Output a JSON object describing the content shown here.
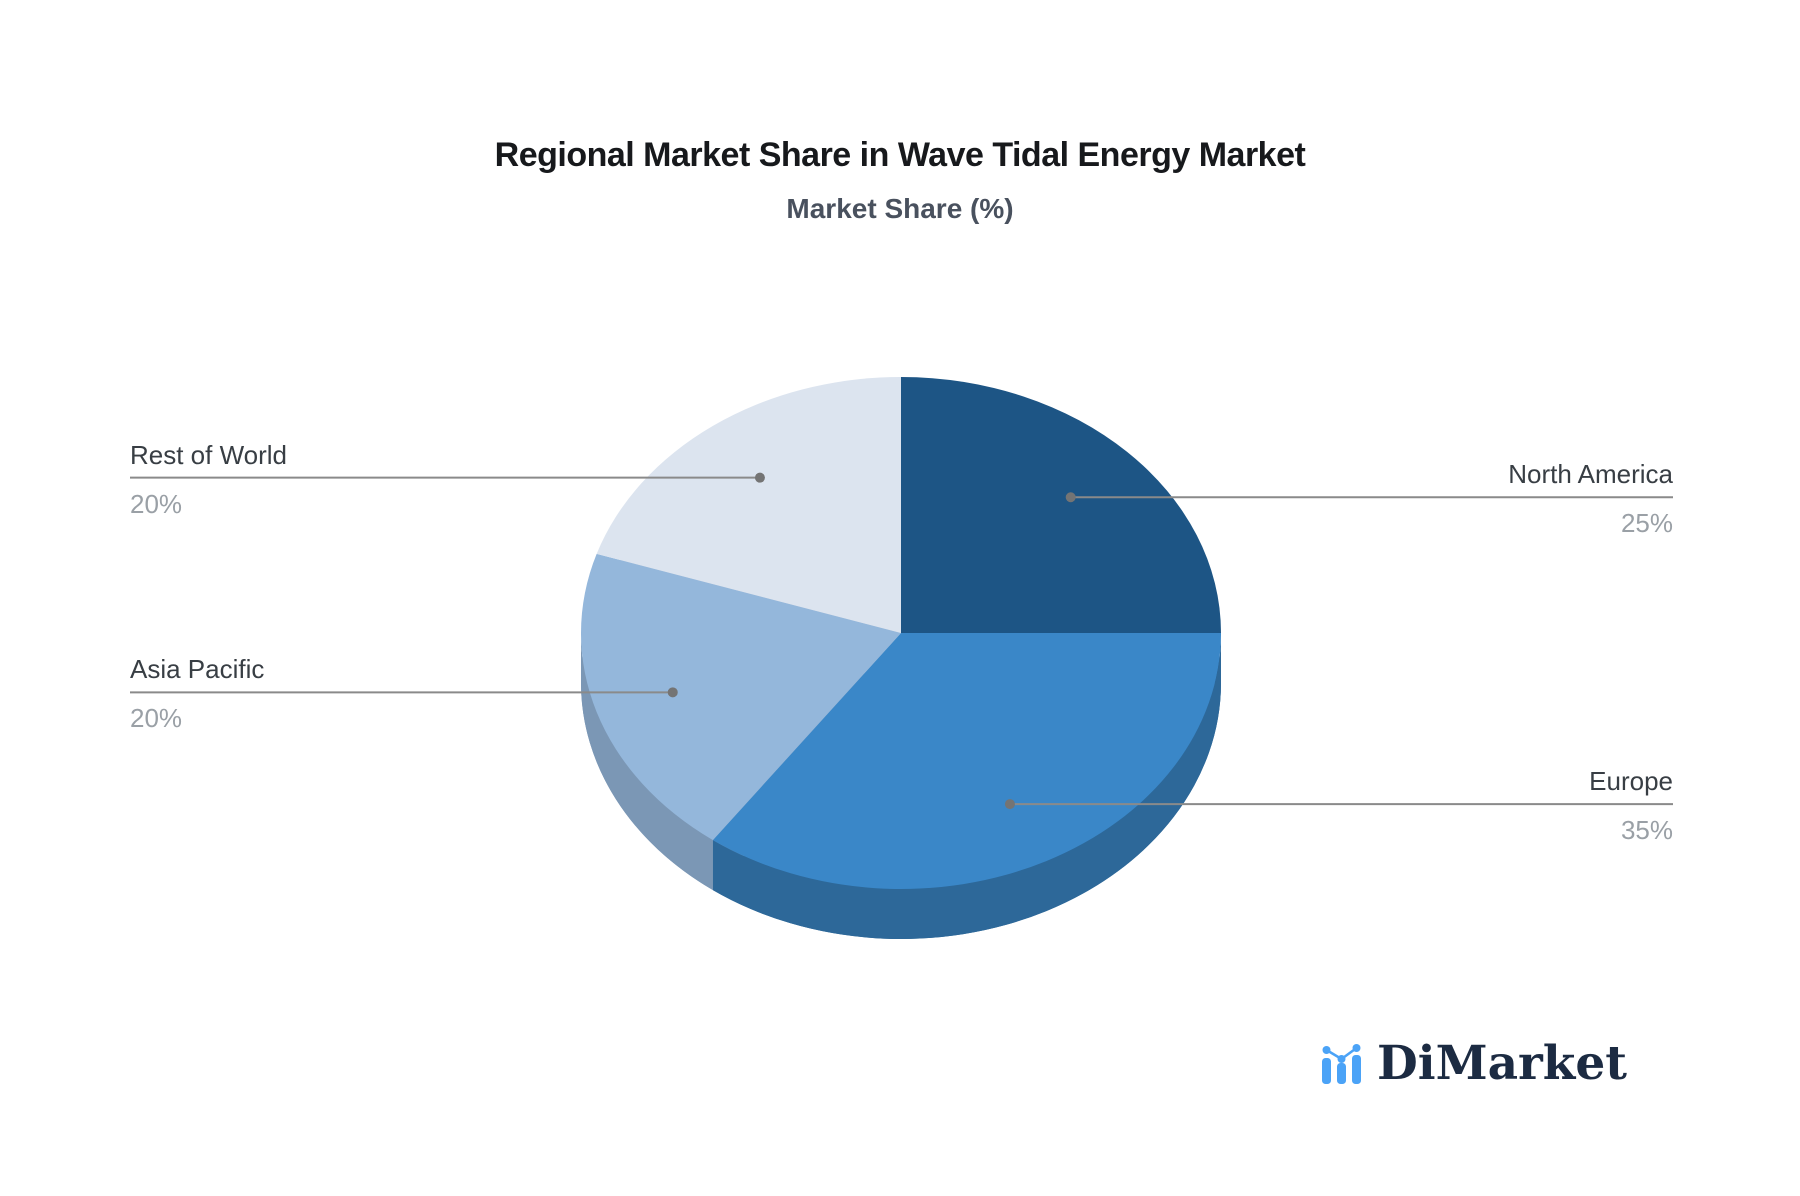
{
  "header": {
    "title": "Regional Market Share in Wave Tidal Energy Market",
    "subtitle": "Market Share (%)"
  },
  "chart_data": {
    "type": "pie",
    "style": "3d",
    "title": "Regional Market Share in Wave Tidal Energy Market",
    "subtitle": "Market Share (%)",
    "unit": "%",
    "direction": "clockwise",
    "start_angle_deg_from_top": 0,
    "categories": [
      "North America",
      "Europe",
      "Asia Pacific",
      "Rest of World"
    ],
    "values": [
      25,
      35,
      20,
      20
    ],
    "slice_colors": [
      "#1d5585",
      "#3a87c8",
      "#94b7db",
      "#dce4ef"
    ],
    "slice_side_colors": [
      "#16436a",
      "#2d6899",
      "#7b97b5",
      "#b9c5d8"
    ],
    "label_sides": [
      "right",
      "right",
      "left",
      "left"
    ],
    "legend_position": "none",
    "grid": false
  },
  "slices": [
    {
      "name": "North America",
      "pct": "25%"
    },
    {
      "name": "Europe",
      "pct": "35%"
    },
    {
      "name": "Asia Pacific",
      "pct": "20%"
    },
    {
      "name": "Rest of World",
      "pct": "20%"
    }
  ],
  "logo": {
    "text": "DiMarket",
    "icon": "mini-bar-line-chart-icon",
    "icon_color": "#4BA3F7",
    "text_color": "#1c2b42"
  },
  "colors": {
    "background": "#ffffff",
    "title": "#17191c",
    "subtitle": "#49515e",
    "label_name": "#383e44",
    "label_pct": "#9aa0a6",
    "leader_line": "#8a8a8a",
    "leader_dot": "#747474"
  }
}
